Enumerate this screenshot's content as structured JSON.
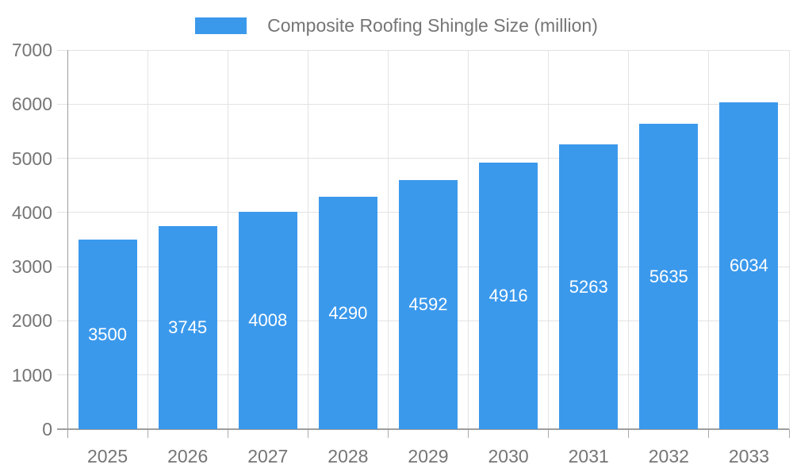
{
  "chart_data": {
    "type": "bar",
    "title": "",
    "legend": "Composite Roofing Shingle Size (million)",
    "legend_position": "top",
    "categories": [
      "2025",
      "2026",
      "2027",
      "2028",
      "2029",
      "2030",
      "2031",
      "2032",
      "2033"
    ],
    "values": [
      3500,
      3745,
      4008,
      4290,
      4592,
      4916,
      5263,
      5635,
      6034
    ],
    "xlabel": "",
    "ylabel": "",
    "ylim": [
      0,
      7000
    ],
    "yticks": [
      0,
      1000,
      2000,
      3000,
      4000,
      5000,
      6000,
      7000
    ],
    "grid": true,
    "colors": {
      "bar": "#3B99EC",
      "bar_label": "#FFFFFF",
      "axis_line": "#9E9E9E",
      "grid_line": "#E3E3E3",
      "tick": "#ABABAB",
      "text": "#757575"
    }
  }
}
